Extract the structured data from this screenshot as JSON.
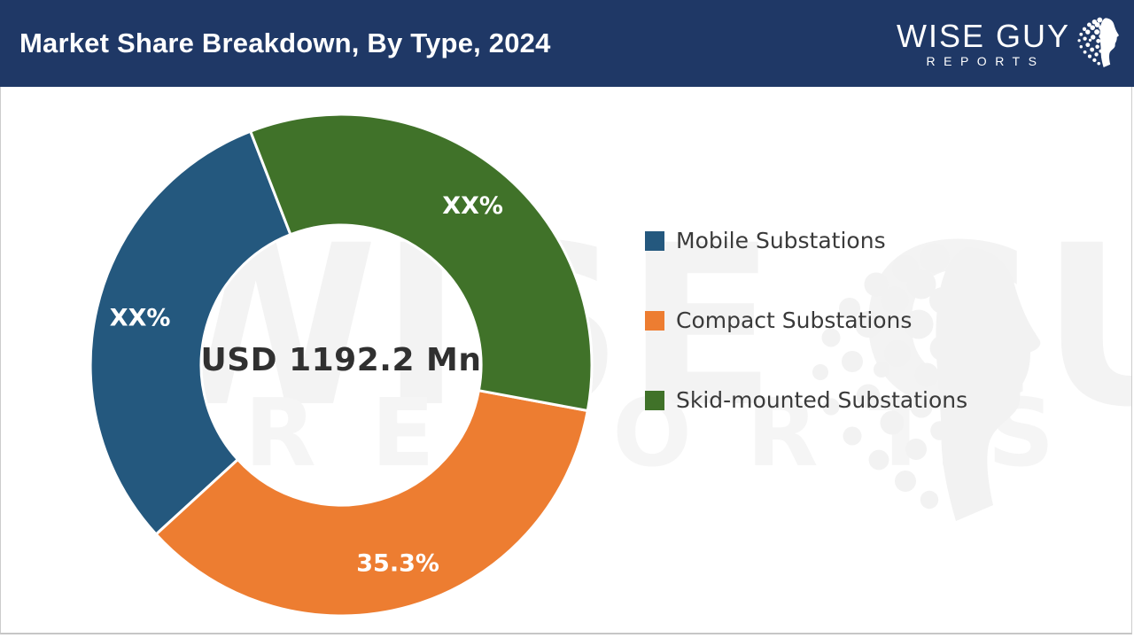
{
  "header": {
    "title": "Market Share Breakdown, By Type, 2024",
    "bg_color": "#1F3866",
    "logo": {
      "line1": "WISE GUY",
      "line2": "REPORTS"
    }
  },
  "chart_data": {
    "type": "pie",
    "subtype": "donut",
    "title": "Market Share Breakdown, By Type, 2024",
    "center_label": "USD 1192.2 Mn",
    "start_angle_deg": 111.2,
    "direction": "counterclockwise",
    "legend_position": "right",
    "series": [
      {
        "name": "Mobile Substations",
        "value_pct": 30.9,
        "display_label": "XX%",
        "color": "#24587E"
      },
      {
        "name": "Compact Substations",
        "value_pct": 35.3,
        "display_label": "35.3%",
        "color": "#ED7D31"
      },
      {
        "name": "Skid-mounted Substations",
        "value_pct": 33.8,
        "display_label": "XX%",
        "color": "#407229"
      }
    ]
  },
  "watermark": {
    "line1": "WISE GUY",
    "line2": "REPORTS"
  }
}
